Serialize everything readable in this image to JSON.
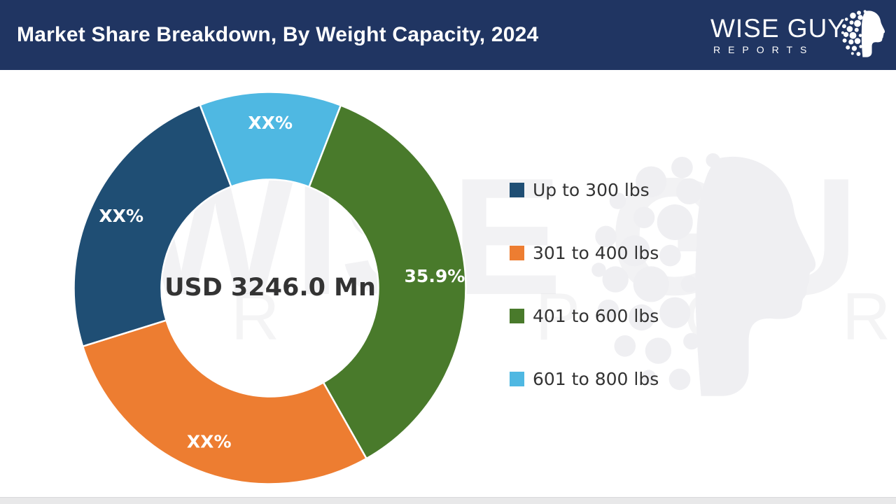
{
  "header": {
    "title": "Market Share Breakdown, By Weight Capacity, 2024",
    "bg_color": "#203562",
    "logo": {
      "line1": "WISE GUY",
      "line2": "REPORTS"
    }
  },
  "watermark": {
    "line1": "WISE GU",
    "line2": "R E P O R T S"
  },
  "chart_data": {
    "type": "donut",
    "title": "Market Share Breakdown, By Weight Capacity, 2024",
    "center_label": "USD 3246.0 Mn",
    "start_angle_deg": -20.9,
    "segments_clockwise": [
      {
        "label": "601 to 800 lbs",
        "percent": 11.7,
        "display_label": "XX%",
        "color": "#4FB8E2"
      },
      {
        "label": "401 to 600 lbs",
        "percent": 35.9,
        "display_label": "35.9%",
        "color": "#497A2B"
      },
      {
        "label": "301 to 400 lbs",
        "percent": 28.4,
        "display_label": "XX%",
        "color": "#ED7D31"
      },
      {
        "label": "Up to 300 lbs",
        "percent": 24.0,
        "display_label": "XX%",
        "color": "#1F4E74"
      }
    ],
    "legend": {
      "position": "right",
      "items": [
        {
          "label": "Up to 300 lbs",
          "color": "#1F4E74"
        },
        {
          "label": "301 to 400 lbs",
          "color": "#ED7D31"
        },
        {
          "label": "401 to 600 lbs",
          "color": "#497A2B"
        },
        {
          "label": "601 to 800 lbs",
          "color": "#4FB8E2"
        }
      ]
    }
  }
}
